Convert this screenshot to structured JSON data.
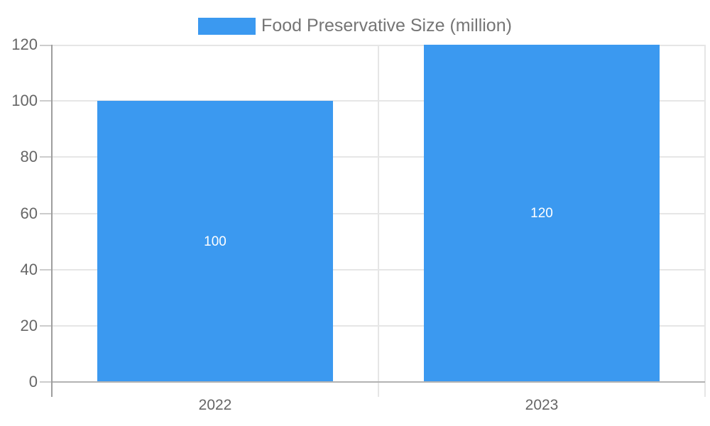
{
  "legend": {
    "label": "Food Preservative Size (million)"
  },
  "chart_data": {
    "type": "bar",
    "categories": [
      "2022",
      "2023"
    ],
    "values": [
      100,
      120
    ],
    "value_labels": [
      "100",
      "120"
    ],
    "series_name": "Food Preservative Size (million)",
    "xlabel": "",
    "ylabel": "",
    "ylim": [
      0,
      120
    ],
    "yticks": [
      0,
      20,
      40,
      60,
      80,
      100,
      120
    ],
    "grid": true,
    "legend_position": "top-center"
  },
  "colors": {
    "bar": "#3b99f0",
    "value_label_text": "#ffffff",
    "gridline": "#e6e6e6",
    "baseline": "#b3b3b3",
    "axis_line": "#9e9e9e",
    "tick": "#cccccc",
    "axis_text": "#666666",
    "legend_text": "#757575",
    "background": "#ffffff"
  }
}
